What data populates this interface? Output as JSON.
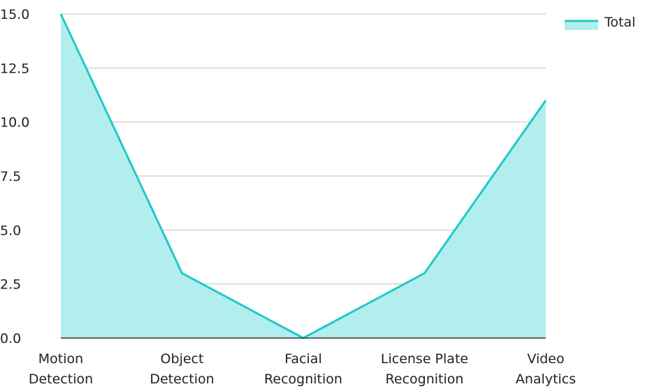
{
  "chart_data": {
    "type": "area",
    "title": "",
    "xlabel": "",
    "ylabel": "",
    "categories": [
      "Motion Detection",
      "Object Detection",
      "Facial Recognition",
      "License Plate Recognition",
      "Video Analytics"
    ],
    "category_lines": [
      [
        "Motion",
        "Detection"
      ],
      [
        "Object",
        "Detection"
      ],
      [
        "Facial",
        "Recognition"
      ],
      [
        "License Plate",
        "Recognition"
      ],
      [
        "Video",
        "Analytics"
      ]
    ],
    "series": [
      {
        "name": "Total",
        "values": [
          15,
          3,
          0,
          3,
          11
        ]
      }
    ],
    "ylim": [
      0,
      15
    ],
    "yticks": [
      0,
      2.5,
      5,
      7.5,
      10,
      12.5,
      15
    ],
    "ytick_labels": [
      "0.0",
      "2.5",
      "5.0",
      "7.5",
      "10.0",
      "12.5",
      "15.0"
    ],
    "grid": true,
    "legend": {
      "position": "top-right"
    },
    "colors": {
      "line": "#22c8c8",
      "fill": "#b2eeee",
      "grid": "#c0c0c0",
      "axis": "#333333"
    }
  }
}
